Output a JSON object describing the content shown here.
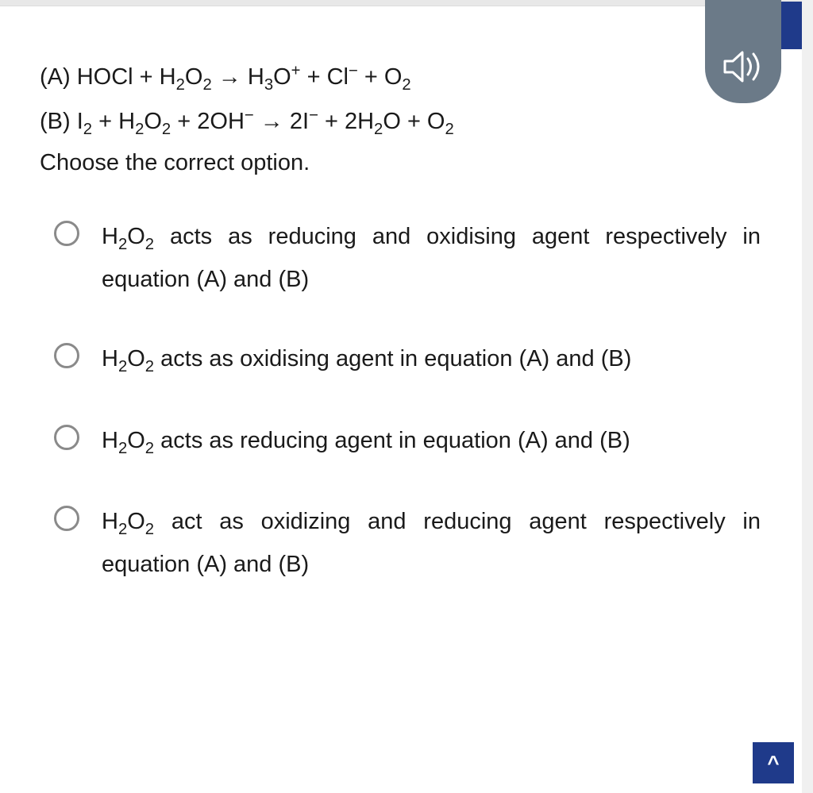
{
  "equations": {
    "a_label": "(A)",
    "a_html": "HOCl + H<sub>2</sub>O<sub>2</sub> → H<sub>3</sub>O<sup>+</sup> + Cl<sup>−</sup> + O<sub>2</sub>",
    "b_label": "(B)",
    "b_html": "I<sub>2</sub> + H<sub>2</sub>O<sub>2</sub> + 2OH<sup>−</sup> → 2I<sup>−</sup> + 2H<sub>2</sub>O + O<sub>2</sub>"
  },
  "prompt": "Choose the correct option.",
  "options": [
    {
      "html": "H<sub>2</sub>O<sub>2</sub> acts as reducing and oxidising agent respectively in equation (A) and (B)",
      "justify": true
    },
    {
      "html": "H<sub>2</sub>O<sub>2</sub> acts as oxidising agent in equation (A) and (B)",
      "justify": false
    },
    {
      "html": "H<sub>2</sub>O<sub>2</sub> acts as reducing agent in equation (A) and (B)",
      "justify": false
    },
    {
      "html": "H<sub>2</sub>O<sub>2</sub> act as oxidizing and reducing agent respectively in equation (A) and (B)",
      "justify": true
    }
  ],
  "colors": {
    "speaker_tab": "#6b7a88",
    "blue_accent": "#1f3a8a",
    "radio_border": "#8a8a8a",
    "text": "#1a1a1a"
  },
  "caret": "^"
}
